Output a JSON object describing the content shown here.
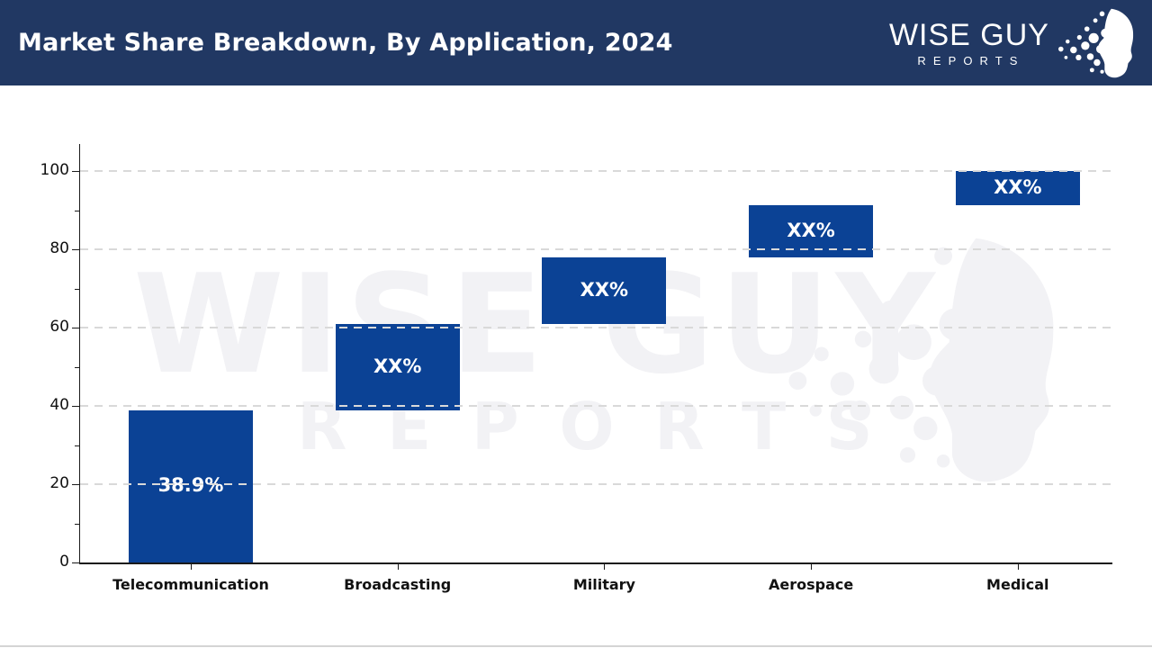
{
  "header": {
    "title": "Market Share Breakdown, By Application, 2024",
    "logo": {
      "line1": "WISE GUY",
      "line2": "REPORTS"
    }
  },
  "watermark": {
    "line1": "WISE GUY",
    "line2": "REPORTS"
  },
  "colors": {
    "header_bg": "#213863",
    "bar": "#0b4295",
    "bar_label": "#ffffff",
    "grid": "#d9d9d9",
    "axis": "#1a1a1a",
    "watermark": "#f2f2f5"
  },
  "chart_data": {
    "type": "bar",
    "subtype": "waterfall",
    "title": "Market Share Breakdown, By Application, 2024",
    "xlabel": "",
    "ylabel": "",
    "categories": [
      "Telecommunication",
      "Broadcasting",
      "Military",
      "Aerospace",
      "Medical"
    ],
    "bars": [
      {
        "category": "Telecommunication",
        "start": 0,
        "end": 38.9,
        "value": 38.9,
        "label": "38.9%"
      },
      {
        "category": "Broadcasting",
        "start": 38.9,
        "end": 61.0,
        "value": 22.1,
        "label": "XX%"
      },
      {
        "category": "Military",
        "start": 61.0,
        "end": 78.0,
        "value": 17.0,
        "label": "XX%"
      },
      {
        "category": "Aerospace",
        "start": 78.0,
        "end": 91.2,
        "value": 13.2,
        "label": "XX%"
      },
      {
        "category": "Medical",
        "start": 91.2,
        "end": 100,
        "value": 8.8,
        "label": "XX%"
      }
    ],
    "ylim": [
      0,
      107
    ],
    "yticks": [
      0,
      20,
      40,
      60,
      80,
      100
    ],
    "yticks_minor": [
      10,
      30,
      50,
      70,
      90
    ],
    "grid": "horizontal-dashed",
    "grid_above_bars": true,
    "legend": "none"
  }
}
